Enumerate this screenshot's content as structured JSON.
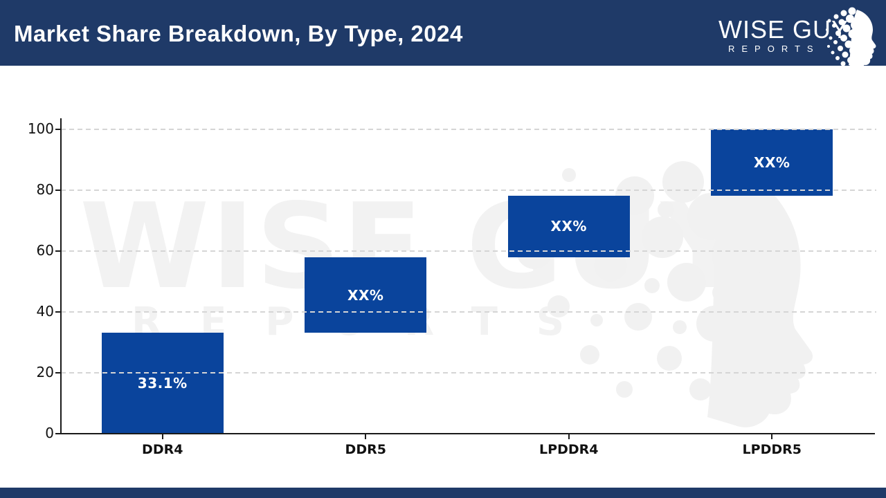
{
  "header": {
    "title": "Market Share Breakdown, By Type, 2024",
    "logo": {
      "name": "WISE GUY",
      "sub": "REPORTS"
    }
  },
  "watermark": {
    "line1": "WISE GUY",
    "line2": "REPORTS"
  },
  "colors": {
    "header_navy": "#1f3a68",
    "bar_blue": "#0a449c",
    "gridline": "#d5d5d5",
    "watermark_gray": "#f2f2f2",
    "axis_black": "#1a1a1a"
  },
  "chart_data": {
    "type": "bar",
    "subtype": "waterfall",
    "title": "Market Share Breakdown, By Type, 2024",
    "categories": [
      "DDR4",
      "DDR5",
      "LPDDR4",
      "LPDDR5"
    ],
    "segments": [
      {
        "category": "DDR4",
        "start": 0,
        "end": 33.1,
        "label": "33.1%"
      },
      {
        "category": "DDR5",
        "start": 33.1,
        "end": 58,
        "label": "XX%"
      },
      {
        "category": "LPDDR4",
        "start": 58,
        "end": 78.2,
        "label": "XX%"
      },
      {
        "category": "LPDDR5",
        "start": 78.2,
        "end": 100,
        "label": "XX%"
      }
    ],
    "xlabel": "",
    "ylabel": "",
    "ylim": [
      0,
      100
    ],
    "yticks": [
      0,
      20,
      40,
      60,
      80,
      100
    ],
    "grid": "horizontal-dashed",
    "legend": "none",
    "bar_color": "#0a449c",
    "bar_label_color": "#ffffff"
  }
}
